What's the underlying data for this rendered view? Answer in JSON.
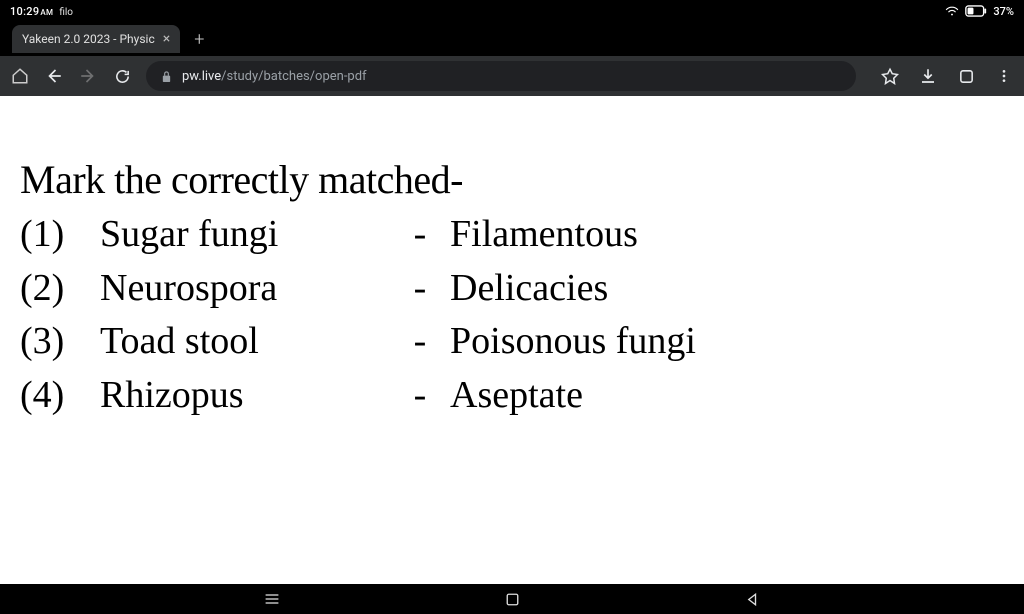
{
  "status": {
    "time": "10:29",
    "time_meridiem": "AM",
    "app_label": "filo",
    "battery_percent": "37%"
  },
  "tab": {
    "title": "Yakeen 2.0 2023 - Physic"
  },
  "toolbar": {
    "url_host": "pw.live",
    "url_path": "/study/batches/open-pdf"
  },
  "doc": {
    "title": "Mark the correctly matched-",
    "options": [
      {
        "num": "(1)",
        "left": "Sugar fungi",
        "right": "Filamentous"
      },
      {
        "num": "(2)",
        "left": "Neurospora",
        "right": "Delicacies"
      },
      {
        "num": "(3)",
        "left": "Toad stool",
        "right": "Poisonous fungi"
      },
      {
        "num": "(4)",
        "left": "Rhizopus",
        "right": "Aseptate"
      }
    ]
  }
}
